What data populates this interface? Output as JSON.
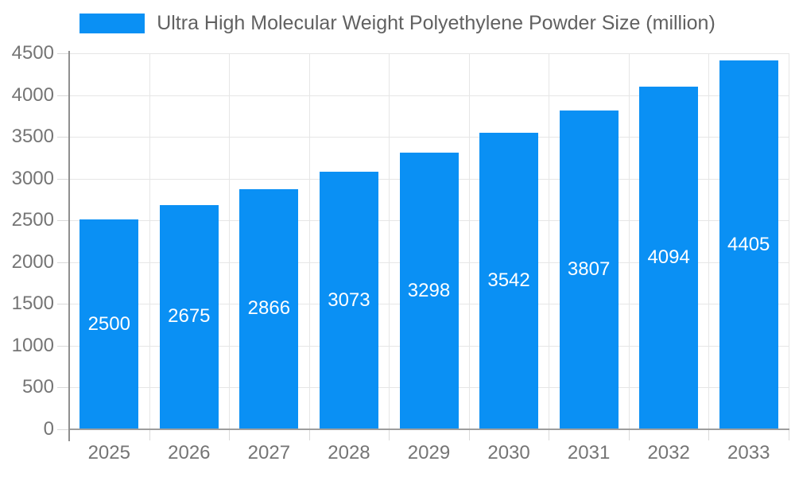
{
  "chart_data": {
    "type": "bar",
    "title": "Ultra High Molecular Weight Polyethylene Powder Size (million)",
    "legend": {
      "position": "top",
      "label": "Ultra High Molecular Weight Polyethylene Powder Size (million)"
    },
    "categories": [
      "2025",
      "2026",
      "2027",
      "2028",
      "2029",
      "2030",
      "2031",
      "2032",
      "2033"
    ],
    "values": [
      2500,
      2675,
      2866,
      3073,
      3298,
      3542,
      3807,
      4094,
      4405
    ],
    "xlabel": "",
    "ylabel": "",
    "ylim": [
      0,
      4500
    ],
    "yticks": [
      0,
      500,
      1000,
      1500,
      2000,
      2500,
      3000,
      3500,
      4000,
      4500
    ],
    "grid": "on",
    "bar_label_position": "inside-center",
    "colors": {
      "bar": "#0a90f4",
      "grid": "#e6e6e6",
      "axis": "#9e9e9e",
      "tick_text": "#757575",
      "legend_text": "#616161",
      "bar_label_text": "#ffffff",
      "background": "#ffffff"
    }
  }
}
